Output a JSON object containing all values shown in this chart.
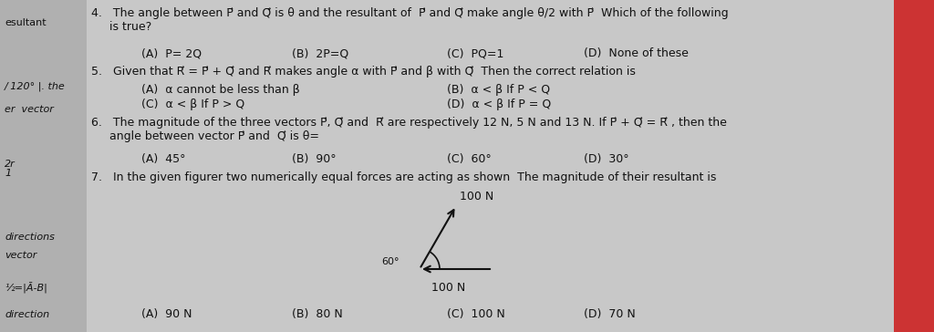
{
  "bg_color": "#c8c8c8",
  "left_bg": "#b0b0b0",
  "text_color": "#111111",
  "arrow_color": "#111111",
  "fig_width": 10.24,
  "fig_height": 3.64,
  "left_labels": [
    "esultant",
    "/ 120° |. the",
    "er  vector",
    "2r",
    "1",
    "directions",
    "vector",
    "½=|Ā-B|",
    "direction"
  ],
  "q4_text": "4.   The angle between P⃗ and Q⃗ is θ and the resultant of  P⃗ and Q⃗ make angle θ/2 with P⃗  Which of the following\n     is true?",
  "q4_opts": [
    "(A)  P= 2Q",
    "(B)  2P=Q",
    "(C)  PQ=1",
    "(D)  None of these"
  ],
  "q5_text": "5.   Given that R⃗ = P⃗ + Q⃗ and R⃗ makes angle α with P⃗ and β with Q⃗  Then the correct relation is",
  "q5_opts_left": [
    "(A)  α cannot be less than β",
    "(C)  α < β If P > Q"
  ],
  "q5_opts_right": [
    "(B)  α < β If P < Q",
    "(D)  α < β If P = Q"
  ],
  "q6_text": "6.   The magnitude of the three vectors P⃗, Q⃗ and  R⃗ are respectively 12 N, 5 N and 13 N. If P⃗ + Q⃗ = R⃗ , then the\n     angle between vector P⃗ and  Q⃗ is θ=",
  "q6_opts": [
    "(A)  45°",
    "(B)  90°",
    "(C)  60°",
    "(D)  30°"
  ],
  "q7_text": "7.   In the given figurer two numerically equal forces are acting as shown  The magnitude of their resultant is",
  "q7_opts": [
    "(A)  90 N",
    "(B)  80 N",
    "(C)  100 N",
    "(D)  70 N"
  ],
  "force_label": "100 N",
  "angle_label": "60°",
  "font_size_main": 9,
  "font_size_left": 8
}
